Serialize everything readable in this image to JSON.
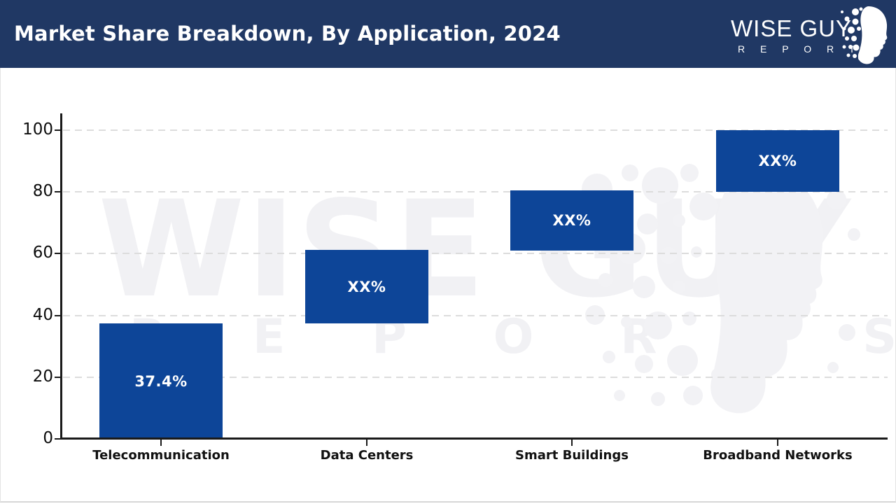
{
  "header": {
    "title": "Market Share Breakdown, By Application, 2024",
    "bg_color": "#203864",
    "logo": {
      "brand_line1": "WISE GUY",
      "brand_line2": "REPORTS"
    }
  },
  "watermark": {
    "line1": "WISE GUY",
    "line2": "REPORTS"
  },
  "chart_data": {
    "type": "bar",
    "subtype": "waterfall-floating-bars",
    "title": "Market Share Breakdown, By Application, 2024",
    "categories": [
      "Telecommunication",
      "Data Centers",
      "Smart Buildings",
      "Broadband Networks"
    ],
    "segments": [
      {
        "start": 0,
        "end": 37.4,
        "label": "37.4%"
      },
      {
        "start": 37.4,
        "end": 61.2,
        "label": "XX%"
      },
      {
        "start": 61.0,
        "end": 80.5,
        "label": "XX%"
      },
      {
        "start": 80.1,
        "end": 100,
        "label": "XX%"
      }
    ],
    "xlabel": "",
    "ylabel": "",
    "ylim": [
      0,
      100
    ],
    "yticks": [
      0,
      20,
      40,
      60,
      80,
      100
    ],
    "grid": "horizontal-dashed",
    "legend": "none",
    "bar_color": "#0d4598",
    "bar_label_color": "#ffffff",
    "axis_color": "#1a1a1a",
    "gridline_color": "#dcdcdc"
  }
}
